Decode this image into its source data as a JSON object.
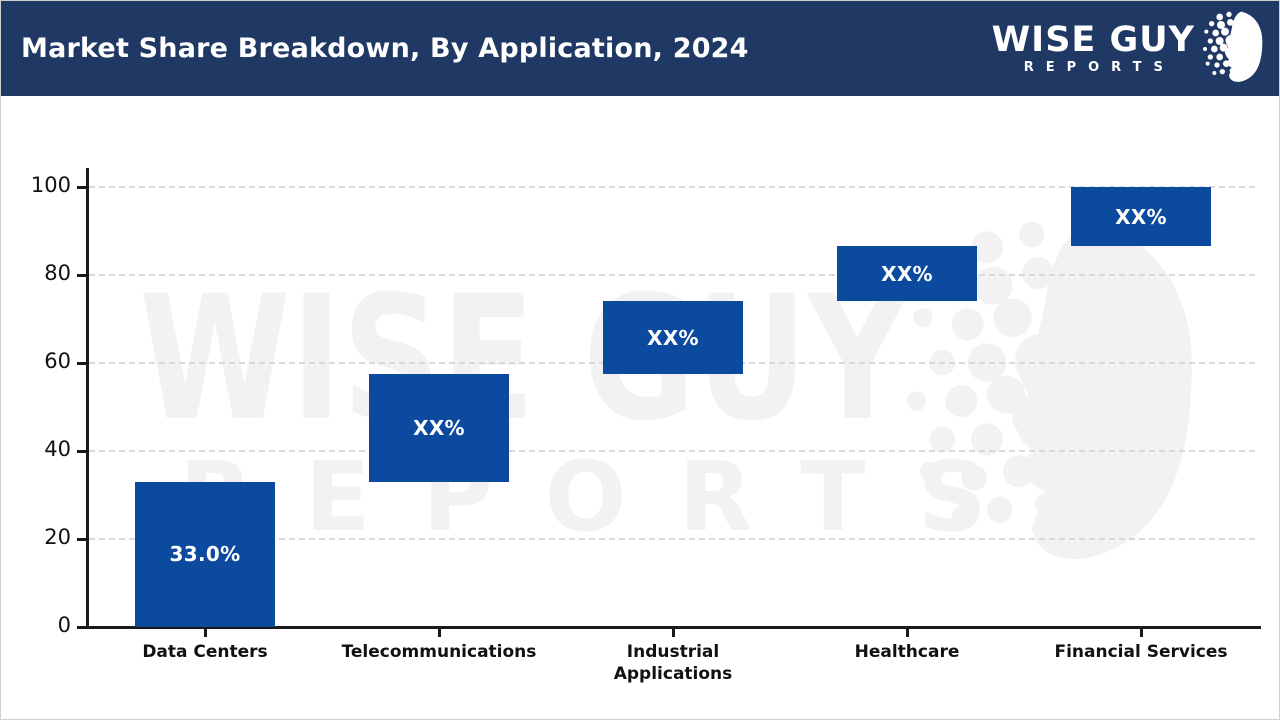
{
  "header": {
    "title": "Market Share Breakdown, By Application, 2024",
    "logo": {
      "line1": "WISE GUY",
      "line2": "REPORTS",
      "icon": "dotted-head-profile-icon"
    }
  },
  "watermark": {
    "line1": "WISE GUY",
    "line2": "REPORTS",
    "icon": "dotted-head-profile-icon"
  },
  "colors": {
    "header_bg": "#203864",
    "bar": "#0b4a9e",
    "bar_label_text": "#ffffff",
    "axis": "#1a1a1a",
    "grid": "#d9d9d9",
    "tick_label_text": "#111111",
    "watermark": "#f2f2f2",
    "title_text": "#ffffff"
  },
  "chart_data": {
    "type": "bar",
    "subtype": "waterfall-floating-bars",
    "title": "Market Share Breakdown, By Application, 2024",
    "categories": [
      "Data Centers",
      "Telecommunications",
      "Industrial\nApplications",
      "Healthcare",
      "Financial Services"
    ],
    "segments": [
      {
        "category": "Data Centers",
        "start": 0,
        "end": 33,
        "label": "33.0%"
      },
      {
        "category": "Telecommunications",
        "start": 33,
        "end": 57.5,
        "label": "XX%"
      },
      {
        "category": "Industrial\nApplications",
        "start": 57.5,
        "end": 74,
        "label": "XX%"
      },
      {
        "category": "Healthcare",
        "start": 74,
        "end": 86.5,
        "label": "XX%"
      },
      {
        "category": "Financial Services",
        "start": 86.5,
        "end": 100,
        "label": "XX%"
      }
    ],
    "xlabel": "",
    "ylabel": "",
    "ylim": [
      0,
      100
    ],
    "yticks": [
      0,
      20,
      40,
      60,
      80,
      100
    ],
    "grid": "horizontal dashed",
    "legend": "none"
  }
}
